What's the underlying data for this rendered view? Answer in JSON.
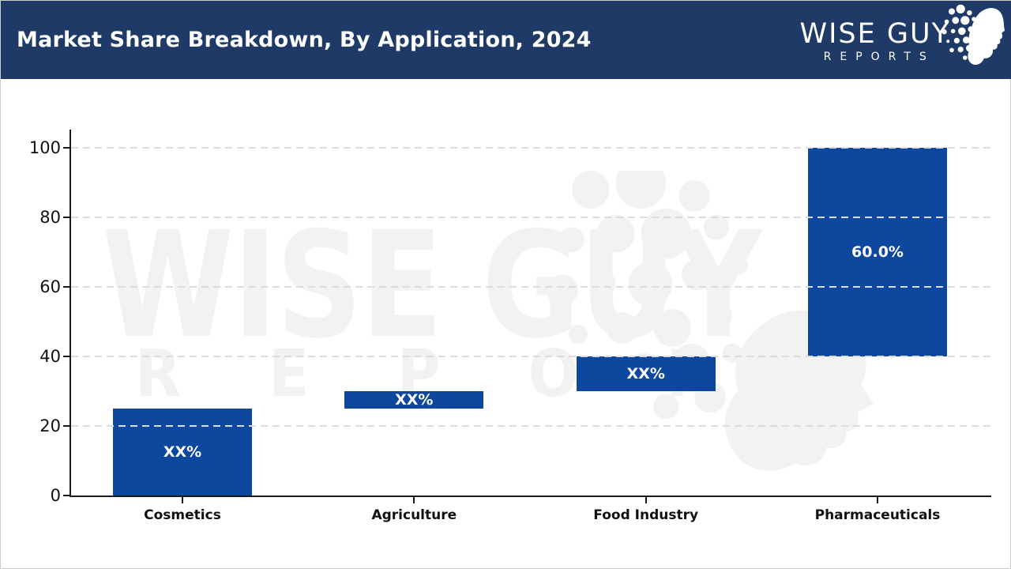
{
  "header": {
    "title": "Market Share Breakdown, By Application, 2024",
    "background_color": "#1f3a67",
    "text_color": "#ffffff",
    "logo": {
      "line1": "WISE GUY",
      "line2": "REPORTS",
      "face_icon": "dotted-head-profile"
    }
  },
  "watermark": {
    "line1": "WISE GUY",
    "line2": "R E P O R T S",
    "color": "#f2f2f2"
  },
  "chart_data": {
    "type": "bar",
    "subtype": "floating-waterfall",
    "title": "Market Share Breakdown, By Application, 2024",
    "categories": [
      "Cosmetics",
      "Agriculture",
      "Food Industry",
      "Pharmaceuticals"
    ],
    "series": [
      {
        "name": "Market Share",
        "segments": [
          {
            "category": "Cosmetics",
            "start": 0,
            "end": 25,
            "value_pct": 25,
            "label": "XX%"
          },
          {
            "category": "Agriculture",
            "start": 25,
            "end": 30,
            "value_pct": 5,
            "label": "XX%"
          },
          {
            "category": "Food Industry",
            "start": 30,
            "end": 40,
            "value_pct": 10,
            "label": "XX%"
          },
          {
            "category": "Pharmaceuticals",
            "start": 40,
            "end": 100,
            "value_pct": 60,
            "label": "60.0%"
          }
        ]
      }
    ],
    "yticks": [
      0,
      20,
      40,
      60,
      80,
      100
    ],
    "ylim": [
      0,
      105
    ],
    "xlabel": "",
    "ylabel": "",
    "grid": "dashed-horizontal",
    "grid_above_bars": true,
    "legend_position": "none",
    "bar_color": "#0d479e",
    "bar_label_color": "#ffffff",
    "axis_color": "#1a1a1a",
    "gridline_color": "#dcdcdc"
  }
}
